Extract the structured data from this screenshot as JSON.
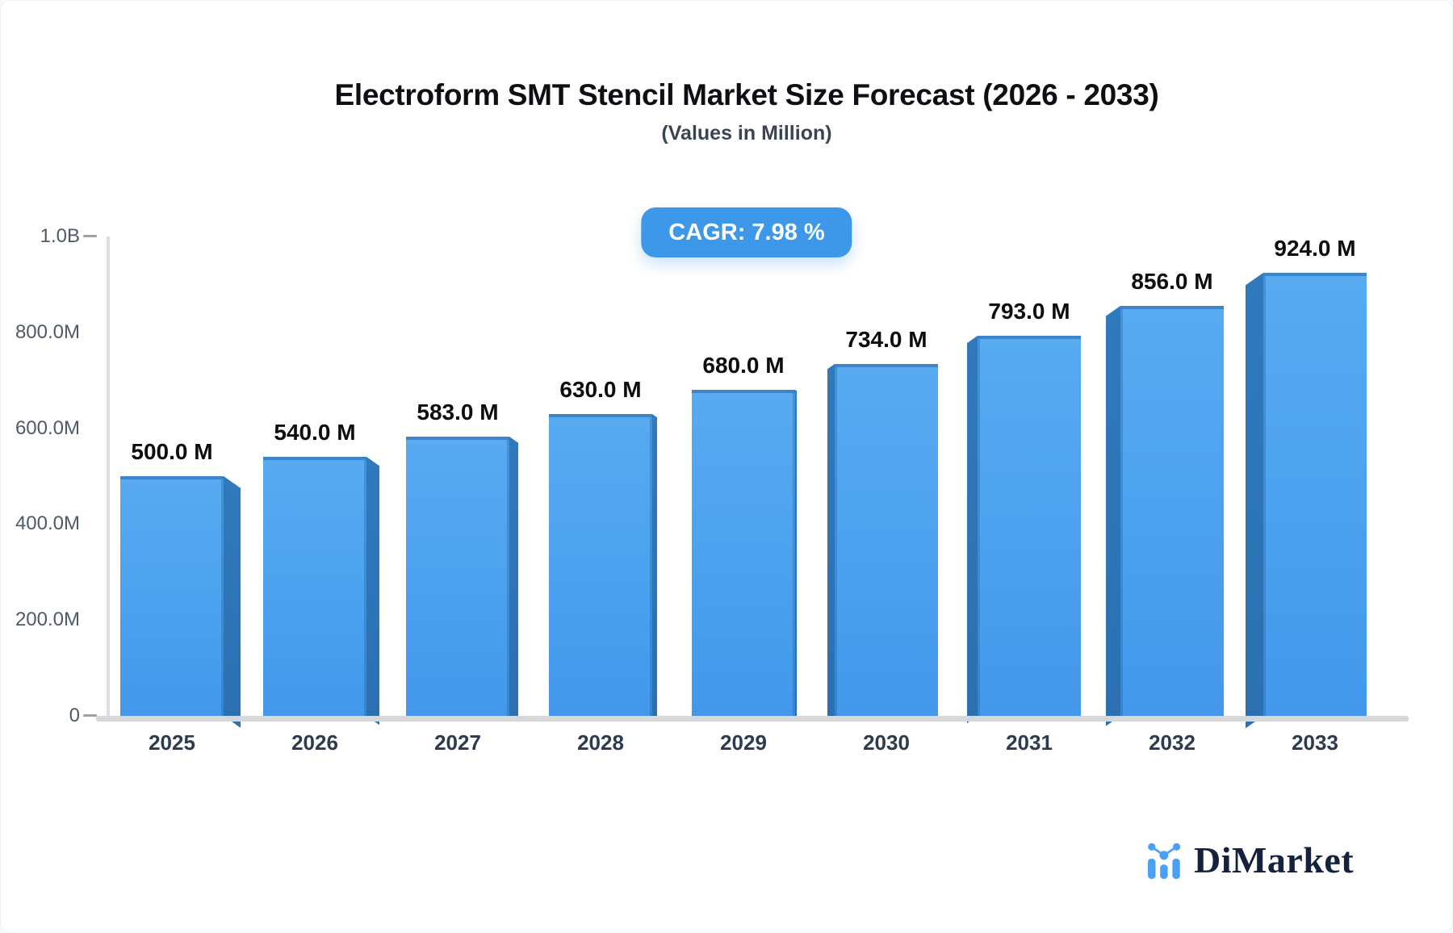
{
  "header": {
    "title": "Electroform SMT Stencil Market Size Forecast (2026 - 2033)",
    "subtitle": "(Values in Million)",
    "cagr_label": "CAGR: 7.98 %"
  },
  "chart_data": {
    "type": "bar",
    "title": "Electroform SMT Stencil Market Size Forecast (2026 - 2033)",
    "subtitle": "(Values in Million)",
    "annotation": "CAGR: 7.98 %",
    "categories": [
      "2025",
      "2026",
      "2027",
      "2028",
      "2029",
      "2030",
      "2031",
      "2032",
      "2033"
    ],
    "values": [
      500.0,
      540.0,
      583.0,
      630.0,
      680.0,
      734.0,
      793.0,
      856.0,
      924.0
    ],
    "data_labels": [
      "500.0 M",
      "540.0 M",
      "583.0 M",
      "630.0 M",
      "680.0 M",
      "734.0 M",
      "793.0 M",
      "856.0 M",
      "924.0 M"
    ],
    "xlabel": "",
    "ylabel": "",
    "ylim": [
      0,
      1000
    ],
    "grid": false,
    "legend": false,
    "y_ticks": [
      {
        "label": "1.0B",
        "value": 1000,
        "tick": true
      },
      {
        "label": "800.0M",
        "value": 800,
        "tick": false
      },
      {
        "label": "600.0M",
        "value": 600,
        "tick": false
      },
      {
        "label": "400.0M",
        "value": 400,
        "tick": false
      },
      {
        "label": "200.0M",
        "value": 200,
        "tick": false
      },
      {
        "label": "0",
        "value": 0,
        "tick": true
      }
    ],
    "colors": {
      "bar_face": "#4da3ef",
      "bar_side": "#2e74b7",
      "badge_bg": "#3e98e9",
      "axis_gray": "#d6d7da"
    }
  },
  "footer": {
    "brand": "DiMarket"
  }
}
